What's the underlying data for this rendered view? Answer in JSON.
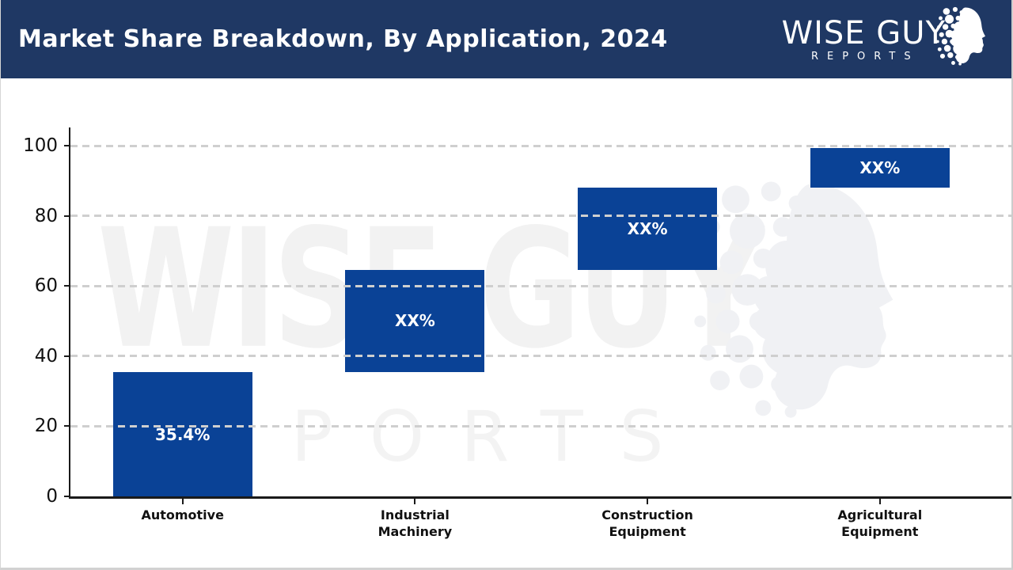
{
  "header": {
    "title": "Market Share Breakdown, By Application, 2024",
    "logo": {
      "line1": "WISE GUY",
      "line2": "REPORTS"
    }
  },
  "watermark": {
    "line1": "WISE GUY",
    "line2": "REPORTS"
  },
  "colors": {
    "header_bg": "#1f3864",
    "bar": "#0a4296",
    "bar_label": "#ffffff",
    "axis": "#1a1a1a",
    "grid": "#cfcfcf",
    "watermark": "#f2f2f2"
  },
  "chart_data": {
    "type": "bar",
    "subtype": "waterfall",
    "title": "Market Share Breakdown, By Application, 2024",
    "xlabel": "",
    "ylabel": "",
    "ylim": [
      0,
      100
    ],
    "yticks": [
      0,
      20,
      40,
      60,
      80,
      100
    ],
    "grid": "horizontal dashed",
    "legend": "none",
    "categories": [
      "Automotive",
      "Industrial Machinery",
      "Construction Equipment",
      "Agricultural Equipment"
    ],
    "category_lines": [
      [
        "Automotive"
      ],
      [
        "Industrial",
        "Machinery"
      ],
      [
        "Construction",
        "Equipment"
      ],
      [
        "Agricultural",
        "Equipment"
      ]
    ],
    "segments": [
      {
        "category": "Automotive",
        "start": 0,
        "end": 35.4,
        "label": "35.4%"
      },
      {
        "category": "Industrial Machinery",
        "start": 35.4,
        "end": 64.7,
        "label": "XX%"
      },
      {
        "category": "Construction Equipment",
        "start": 64.7,
        "end": 88.2,
        "label": "XX%"
      },
      {
        "category": "Agricultural Equipment",
        "start": 88.2,
        "end": 99.3,
        "label": "XX%"
      }
    ]
  }
}
